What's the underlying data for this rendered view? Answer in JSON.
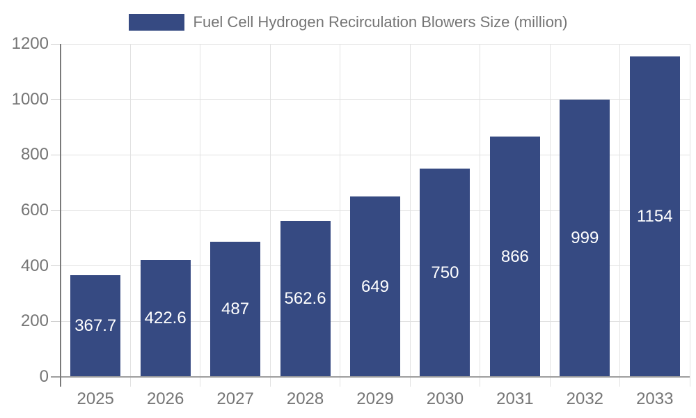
{
  "legend": {
    "label": "Fuel Cell Hydrogen Recirculation Blowers Size (million)"
  },
  "chart_data": {
    "type": "bar",
    "title": "Fuel Cell Hydrogen Recirculation Blowers Size (million)",
    "categories": [
      "2025",
      "2026",
      "2027",
      "2028",
      "2029",
      "2030",
      "2031",
      "2032",
      "2033"
    ],
    "values": [
      367.7,
      422.6,
      487,
      562.6,
      649,
      750,
      866,
      999,
      1154
    ],
    "value_labels": [
      "367.7",
      "422.6",
      "487",
      "562.6",
      "649",
      "750",
      "866",
      "999",
      "1154"
    ],
    "xlabel": "",
    "ylabel": "",
    "ylim": [
      0,
      1200
    ],
    "yticks": [
      0,
      200,
      400,
      600,
      800,
      1000,
      1200
    ],
    "grid": true,
    "legend_position": "top",
    "bar_color": "#364a82",
    "value_label_color": "#ffffff"
  },
  "style": {
    "background": "#ffffff",
    "text_color": "#757575",
    "gridline_color": "#e2e2e2",
    "tick_color": "#d0d0d0",
    "x_axis_color": "#9e9e9e",
    "y_axis_color": "#7a7a7a"
  }
}
